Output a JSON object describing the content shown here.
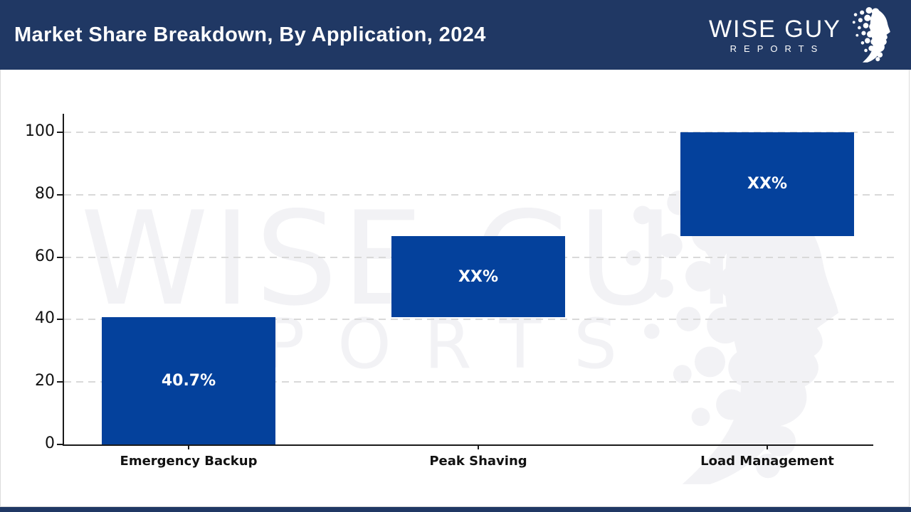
{
  "header": {
    "title": "Market Share Breakdown, By Application, 2024",
    "logo_line1": "WISE GUY",
    "logo_line2": "REPORTS"
  },
  "watermark": {
    "line1": "WISE GUY",
    "line2": "REPORTS"
  },
  "chart_data": {
    "type": "bar",
    "variant": "waterfall",
    "title": "Market Share Breakdown, By Application, 2024",
    "categories": [
      "Emergency Backup",
      "Peak Shaving",
      "Load Management"
    ],
    "segments": [
      {
        "category": "Emergency Backup",
        "start": 0,
        "end": 40.7,
        "label": "40.7%"
      },
      {
        "category": "Peak Shaving",
        "start": 40.7,
        "end": 66.8,
        "label": "XX%"
      },
      {
        "category": "Load Management",
        "start": 66.8,
        "end": 100,
        "label": "XX%"
      }
    ],
    "yticks": [
      0,
      20,
      40,
      60,
      80,
      100
    ],
    "ylim": [
      0,
      105
    ],
    "xlabel": "",
    "ylabel": "",
    "grid": "horizontal-dashed",
    "legend": "none",
    "colors": {
      "bar": "#04419C",
      "bar_label": "#FFFFFF",
      "axis": "#1A1A1A",
      "gridline": "#D9D9D9",
      "header_bg": "#203864",
      "watermark": "#F2F2F5"
    }
  }
}
